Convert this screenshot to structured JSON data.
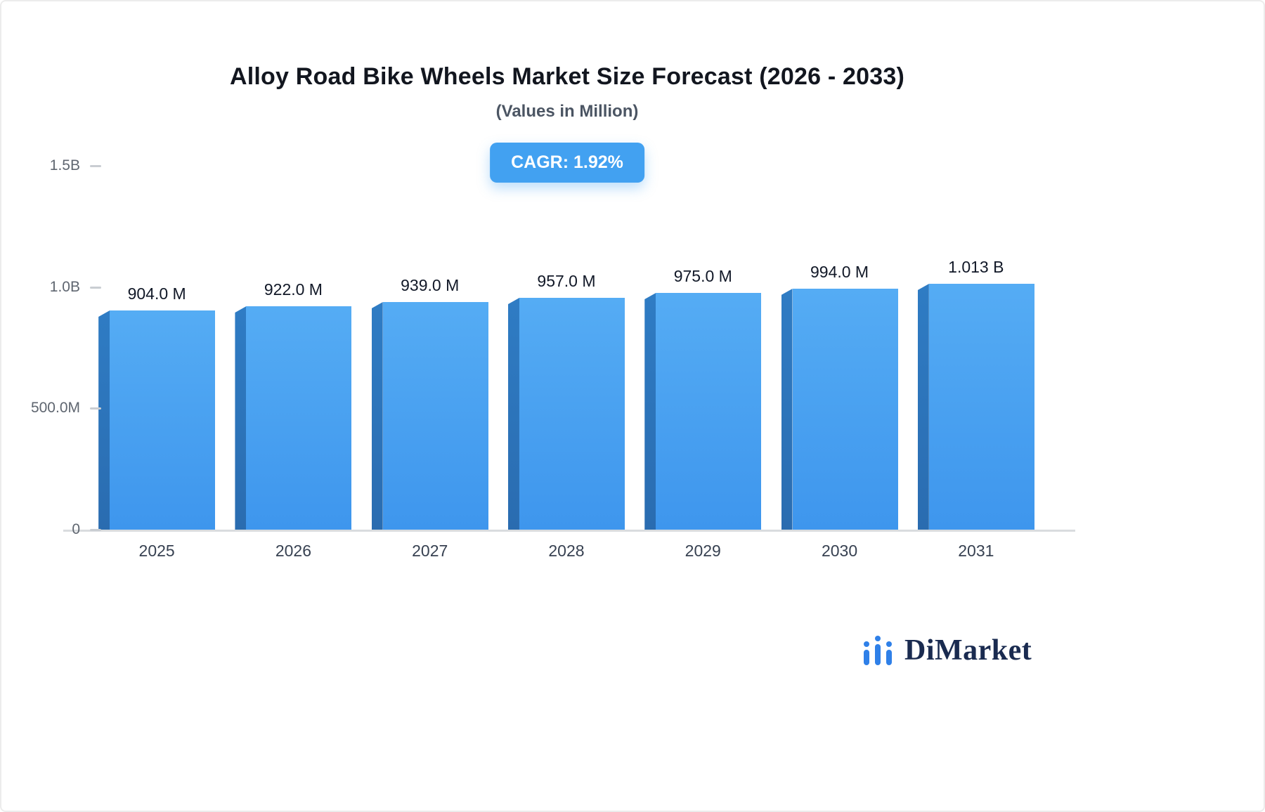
{
  "chart_data": {
    "type": "bar",
    "title": "Alloy Road Bike Wheels Market Size Forecast (2026 - 2033)",
    "subtitle": "(Values in Million)",
    "badge_label": "CAGR: 1.92%",
    "badge_color": "#42a1f1",
    "categories": [
      "2025",
      "2026",
      "2027",
      "2028",
      "2029",
      "2030",
      "2031"
    ],
    "values": [
      904,
      922,
      939,
      957,
      975,
      994,
      1013
    ],
    "value_labels": [
      "904.0 M",
      "922.0 M",
      "939.0 M",
      "957.0 M",
      "975.0 M",
      "994.0 M",
      "1.013 B"
    ],
    "unit": "Million",
    "ylim": [
      0,
      1500
    ],
    "yticks": [
      {
        "value": 1500,
        "label": "1.5B"
      },
      {
        "value": 1000,
        "label": "1.0B"
      },
      {
        "value": 500,
        "label": "500.0M"
      },
      {
        "value": 0,
        "label": "0"
      }
    ],
    "grid": false,
    "legend": false,
    "bar_colors": {
      "face_top": "#55acf4",
      "face_bottom": "#3e96ed",
      "side_top": "#2f7cc4",
      "side_bottom": "#2a6cb0"
    },
    "axis_color": "#d9dcdf"
  },
  "logo": {
    "text": "DiMarket",
    "icon": "bar-chart-logo-icon",
    "text_color": "#1a2b50",
    "icon_color": "#2f80e8"
  }
}
